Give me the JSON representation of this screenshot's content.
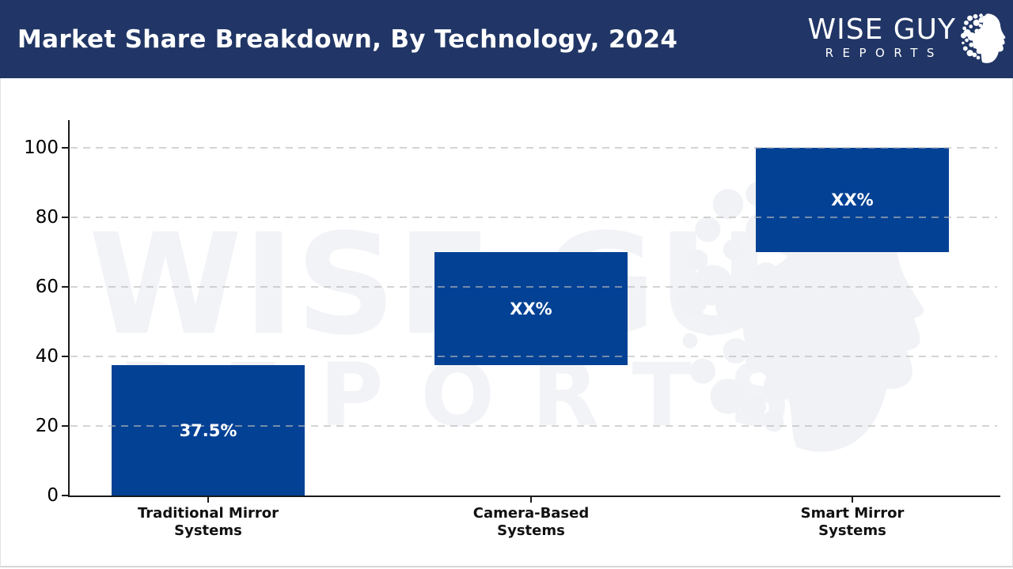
{
  "header": {
    "title": "Market Share Breakdown, By Technology, 2024",
    "bg_color": "#213666",
    "title_color": "#ffffff",
    "logo": {
      "line1": "WISE GUY",
      "line2": "REPORTS"
    }
  },
  "watermark": {
    "line1": "WISE GUY",
    "line2": "REPORTS",
    "color": "#f2f3f6"
  },
  "chart_data": {
    "type": "bar",
    "subtype": "floating-segment waterfall-style market share bars",
    "title": "Market Share Breakdown, By Technology, 2024",
    "categories": [
      {
        "line1": "Traditional Mirror",
        "line2": "Systems"
      },
      {
        "line1": "Camera-Based",
        "line2": "Systems"
      },
      {
        "line1": "Smart Mirror",
        "line2": "Systems"
      }
    ],
    "bars": [
      {
        "category": "Traditional Mirror Systems",
        "start": 0,
        "end": 37.5,
        "label": "37.5%"
      },
      {
        "category": "Camera-Based Systems",
        "start": 37.5,
        "end": 70,
        "label": "XX%"
      },
      {
        "category": "Smart Mirror Systems",
        "start": 70,
        "end": 100,
        "label": "XX%"
      }
    ],
    "yticks": [
      0,
      20,
      40,
      60,
      80,
      100
    ],
    "ylim": [
      0,
      108
    ],
    "xlabel": "",
    "ylabel": "",
    "grid": {
      "horizontal": true,
      "style": "dashed",
      "color": "#d9d9d9"
    },
    "legend": "none",
    "bar_color": "#034195",
    "bar_label_color": "#ffffff",
    "axis_color": "#1a1a1a"
  }
}
